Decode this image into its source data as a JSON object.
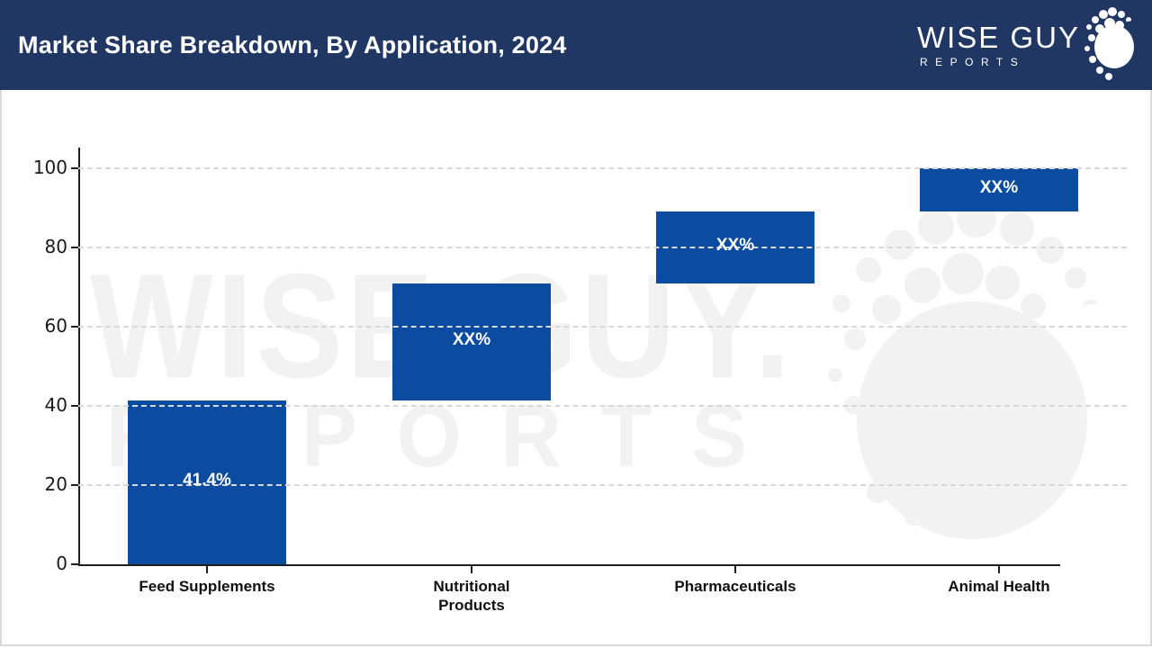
{
  "header": {
    "title": "Market Share Breakdown, By Application, 2024",
    "logo": {
      "line1": "WISE GUY",
      "line2": "REPORTS"
    }
  },
  "watermark": {
    "line1": "WISE GUY.",
    "line2": "REPORTS"
  },
  "chart_data": {
    "type": "bar",
    "subtype": "waterfall",
    "title": "Market Share Breakdown, By Application, 2024",
    "categories": [
      "Feed Supplements",
      "Nutritional\nProducts",
      "Pharmaceuticals",
      "Animal Health"
    ],
    "segments": [
      {
        "category": "Feed Supplements",
        "start": 0,
        "end": 41.4,
        "label": "41.4%"
      },
      {
        "category": "Nutritional Products",
        "start": 41.4,
        "end": 71,
        "label": "XX%"
      },
      {
        "category": "Pharmaceuticals",
        "start": 71,
        "end": 89,
        "label": "XX%"
      },
      {
        "category": "Animal Health",
        "start": 89,
        "end": 100,
        "label": "XX%"
      }
    ],
    "values_masked_as": "XX%",
    "yticks": [
      0,
      20,
      40,
      60,
      80,
      100
    ],
    "ylim": [
      0,
      100
    ],
    "xlabel": "",
    "ylabel": "",
    "legend": "none",
    "grid": "horizontal-dashed",
    "bar_color": "#0b4ba0"
  },
  "colors": {
    "header_bg": "#213763",
    "bar": "#0b4ba0",
    "grid": "#d8d8d8",
    "axis": "#1f1f1f",
    "watermark": "#f2f2f2",
    "edge_border": "#d9d9d9"
  }
}
